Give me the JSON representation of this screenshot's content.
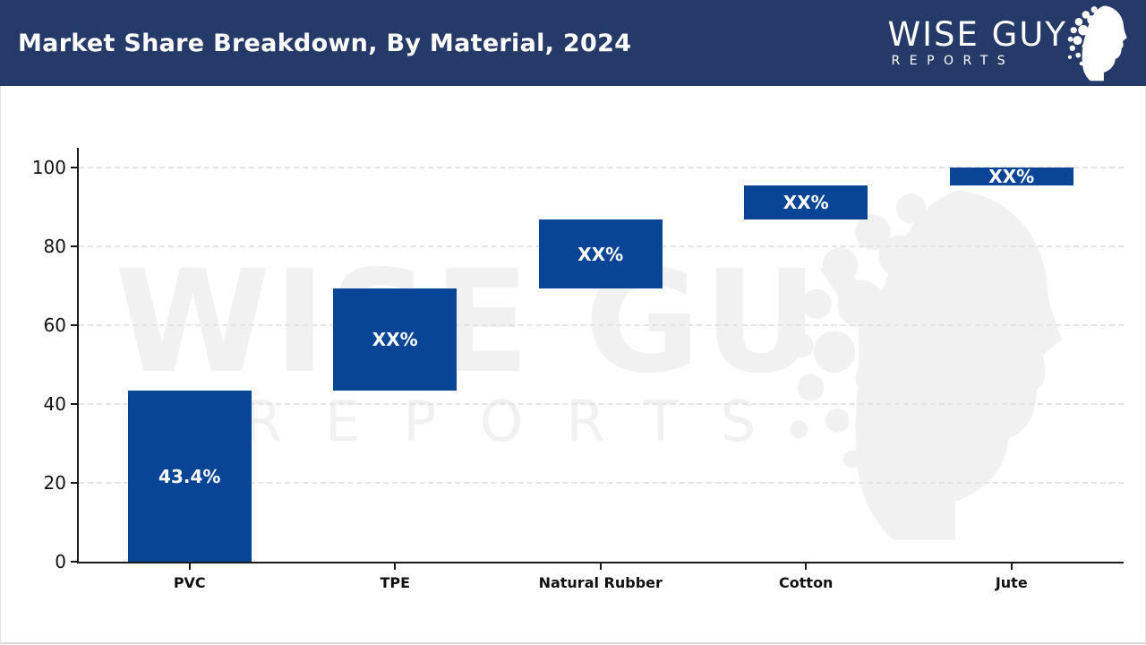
{
  "header": {
    "title": "Market Share Breakdown, By Material, 2024",
    "logo": {
      "wordmark": "WISE GUY",
      "subtext": "REPORTS"
    }
  },
  "watermark": {
    "line1": "WISE GUY",
    "line2": "REPORTS"
  },
  "colors": {
    "header_bg": "#253a69",
    "bar": "#084597",
    "bar_label": "#ffffff",
    "grid": "#e4e4e4",
    "axis": "#1a1a1a",
    "watermark": "#f1f1f1"
  },
  "chart_data": {
    "type": "bar",
    "variant": "waterfall",
    "title": "Market Share Breakdown, By Material, 2024",
    "categories": [
      "PVC",
      "TPE",
      "Natural Rubber",
      "Cotton",
      "Jute"
    ],
    "segments": [
      {
        "category": "PVC",
        "start": 0,
        "end": 43.4,
        "label": "43.4%"
      },
      {
        "category": "TPE",
        "start": 43.4,
        "end": 69.3,
        "label": "XX%"
      },
      {
        "category": "Natural Rubber",
        "start": 69.3,
        "end": 86.8,
        "label": "XX%"
      },
      {
        "category": "Cotton",
        "start": 86.8,
        "end": 95.4,
        "label": "XX%"
      },
      {
        "category": "Jute",
        "start": 95.4,
        "end": 100.0,
        "label": "XX%"
      }
    ],
    "yticks": [
      0,
      20,
      40,
      60,
      80,
      100
    ],
    "ylim": [
      0,
      105
    ],
    "xlabel": "",
    "ylabel": "",
    "grid": "horizontal-dashed",
    "legend": "none"
  }
}
